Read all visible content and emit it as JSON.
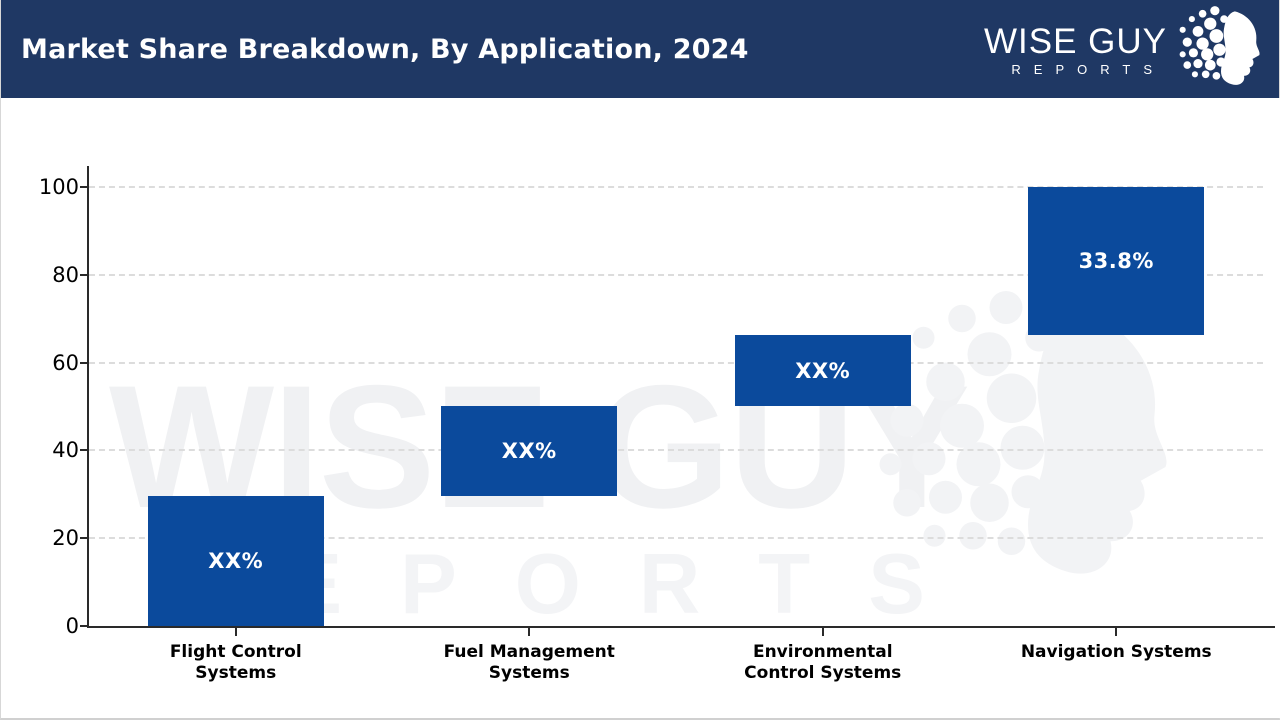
{
  "header": {
    "title": "Market Share Breakdown, By Application, 2024",
    "logo": {
      "name": "WISE GUY",
      "sub": "REPORTS"
    }
  },
  "watermark": {
    "line1": "WISE GUY",
    "line2": "REPORTS"
  },
  "chart_data": {
    "type": "bar",
    "subtype": "waterfall-floating-bars",
    "title": "Market Share Breakdown, By Application, 2024",
    "xlabel": "",
    "ylabel": "",
    "ylim": [
      0,
      100
    ],
    "yticks": [
      0,
      20,
      40,
      60,
      80,
      100
    ],
    "grid": "horizontal-dashed",
    "legend": "none",
    "categories": [
      "Flight Control Systems",
      "Fuel Management Systems",
      "Environmental Control Systems",
      "Navigation Systems"
    ],
    "segments": [
      {
        "category": "Flight Control Systems",
        "lines": [
          "Flight Control",
          "Systems"
        ],
        "start": 0,
        "end": 29.6,
        "label": "XX%"
      },
      {
        "category": "Fuel Management Systems",
        "lines": [
          "Fuel Management",
          "Systems"
        ],
        "start": 29.6,
        "end": 50.1,
        "label": "XX%"
      },
      {
        "category": "Environmental Control Systems",
        "lines": [
          "Environmental",
          "Control Systems"
        ],
        "start": 50.1,
        "end": 66.2,
        "label": "XX%"
      },
      {
        "category": "Navigation Systems",
        "lines": [
          "Navigation Systems"
        ],
        "start": 66.2,
        "end": 100,
        "label": "33.8%"
      }
    ],
    "bar_color": "#0b4a9c",
    "bar_label_color": "#ffffff",
    "axis_color": "#2a2a2a",
    "grid_color": "#dcdcdc"
  },
  "colors": {
    "header_bg": "#1f3864",
    "header_text": "#ffffff",
    "watermark": "#f0f1f3",
    "page_bg": "#ffffff"
  }
}
